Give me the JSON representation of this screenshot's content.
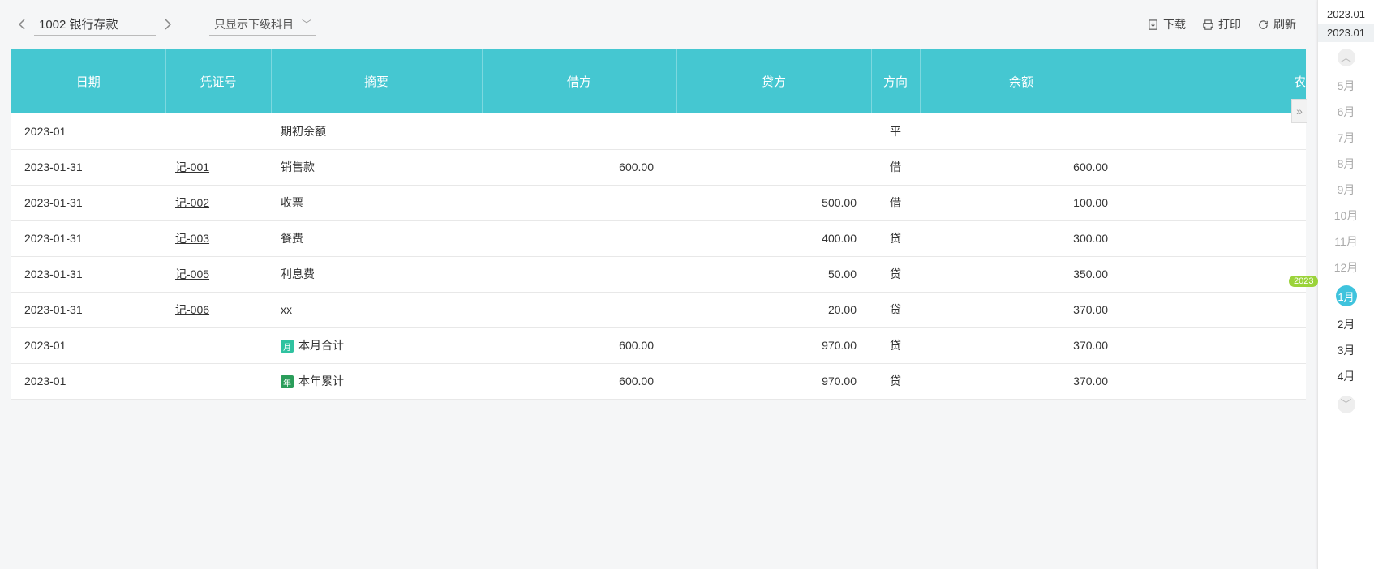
{
  "colors": {
    "header": "#45c7d1",
    "link": "#333333"
  },
  "toolbar": {
    "account": "1002  银行存款",
    "filter": "只显示下级科目",
    "download": "下载",
    "print": "打印",
    "refresh": "刷新"
  },
  "table": {
    "columns": {
      "date": "日期",
      "voucher": "凭证号",
      "summary": "摘要",
      "debit": "借方",
      "credit": "贷方",
      "direction": "方向",
      "balance": "余额",
      "extra": "农"
    },
    "rows": [
      {
        "date": "2023-01",
        "voucher": "",
        "summary": "期初余额",
        "summary_icon": "",
        "debit": "",
        "credit": "",
        "direction": "平",
        "balance": ""
      },
      {
        "date": "2023-01-31",
        "voucher": "记-001",
        "summary": "销售款",
        "summary_icon": "",
        "debit": "600.00",
        "credit": "",
        "direction": "借",
        "balance": "600.00"
      },
      {
        "date": "2023-01-31",
        "voucher": "记-002",
        "summary": "收票",
        "summary_icon": "",
        "debit": "",
        "credit": "500.00",
        "direction": "借",
        "balance": "100.00"
      },
      {
        "date": "2023-01-31",
        "voucher": "记-003",
        "summary": "餐费",
        "summary_icon": "",
        "debit": "",
        "credit": "400.00",
        "direction": "贷",
        "balance": "300.00"
      },
      {
        "date": "2023-01-31",
        "voucher": "记-005",
        "summary": "利息费",
        "summary_icon": "",
        "debit": "",
        "credit": "50.00",
        "direction": "贷",
        "balance": "350.00"
      },
      {
        "date": "2023-01-31",
        "voucher": "记-006",
        "summary": "xx",
        "summary_icon": "",
        "debit": "",
        "credit": "20.00",
        "direction": "贷",
        "balance": "370.00"
      },
      {
        "date": "2023-01",
        "voucher": "",
        "summary": "本月合计",
        "summary_icon": "month",
        "debit": "600.00",
        "credit": "970.00",
        "direction": "贷",
        "balance": "370.00"
      },
      {
        "date": "2023-01",
        "voucher": "",
        "summary": "本年累计",
        "summary_icon": "year",
        "debit": "600.00",
        "credit": "970.00",
        "direction": "贷",
        "balance": "370.00"
      }
    ]
  },
  "side": {
    "period_from": "2023.01",
    "period_to": "2023.01",
    "year_badge": "2023",
    "months": [
      {
        "label": "5月",
        "state": "past"
      },
      {
        "label": "6月",
        "state": "past"
      },
      {
        "label": "7月",
        "state": "past"
      },
      {
        "label": "8月",
        "state": "past"
      },
      {
        "label": "9月",
        "state": "past"
      },
      {
        "label": "10月",
        "state": "past"
      },
      {
        "label": "11月",
        "state": "past"
      },
      {
        "label": "12月",
        "state": "past"
      },
      {
        "label": "1月",
        "state": "active"
      },
      {
        "label": "2月",
        "state": "future"
      },
      {
        "label": "3月",
        "state": "future"
      },
      {
        "label": "4月",
        "state": "future"
      }
    ]
  }
}
